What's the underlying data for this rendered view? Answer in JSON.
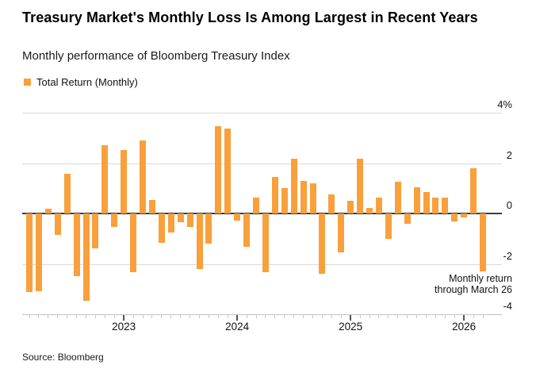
{
  "header": {
    "title": "Treasury Market's Monthly Loss Is Among Largest in Recent Years",
    "subtitle": "Monthly performance of Bloomberg Treasury Index"
  },
  "legend": {
    "label": "Total Return (Monthly)"
  },
  "annotation": {
    "line1": "Monthly return",
    "line2": "through March 26"
  },
  "source": "Source: Bloomberg",
  "colors": {
    "bar_orange": "#F9A03C",
    "gridline": "#D9D9D9",
    "zero_line": "#3D3D3D",
    "text": "#111111"
  },
  "chart_data": {
    "type": "bar",
    "title": "Treasury Market's Monthly Loss Is Among Largest in Recent Years",
    "subtitle": "Monthly performance of Bloomberg Treasury Index",
    "series_name": "Total Return (Monthly)",
    "unit": "%",
    "ylim": [
      -4,
      4
    ],
    "grid": "horizontal",
    "legend_position": "top-left",
    "yticks": [
      "4%",
      "2",
      "0",
      "-2",
      "-4"
    ],
    "ytick_values": [
      4,
      2,
      0,
      -2,
      -4
    ],
    "xticklabels": [
      "2023",
      "2024",
      "2025",
      "2026"
    ],
    "x": [
      "2022-03",
      "2022-04",
      "2022-05",
      "2022-06",
      "2022-07",
      "2022-08",
      "2022-09",
      "2022-10",
      "2022-11",
      "2022-12",
      "2023-01",
      "2023-02",
      "2023-03",
      "2023-04",
      "2023-05",
      "2023-06",
      "2023-07",
      "2023-08",
      "2023-09",
      "2023-10",
      "2023-11",
      "2023-12",
      "2024-01",
      "2024-02",
      "2024-03",
      "2024-04",
      "2024-05",
      "2024-06",
      "2024-07",
      "2024-08",
      "2024-09",
      "2024-10",
      "2024-11",
      "2024-12",
      "2025-01",
      "2025-02",
      "2025-03",
      "2025-04",
      "2025-05",
      "2025-06",
      "2025-07",
      "2025-08",
      "2025-09",
      "2025-10",
      "2025-11",
      "2025-12",
      "2026-01",
      "2026-02",
      "2026-03"
    ],
    "values": [
      -3.11,
      -3.1,
      0.18,
      -0.85,
      1.59,
      -2.48,
      -3.45,
      -1.38,
      2.7,
      -0.52,
      2.51,
      -2.34,
      2.89,
      0.54,
      -1.15,
      -0.75,
      -0.35,
      -0.52,
      -2.21,
      -1.2,
      3.47,
      3.36,
      -0.28,
      -1.31,
      0.64,
      -2.33,
      1.45,
      1.01,
      2.16,
      1.28,
      1.2,
      -2.38,
      0.77,
      -1.54,
      0.5,
      2.16,
      0.23,
      0.63,
      -1.0,
      1.25,
      -0.4,
      1.05,
      0.85,
      0.63,
      0.63,
      -0.31,
      -0.16,
      1.8,
      -2.3
    ]
  }
}
